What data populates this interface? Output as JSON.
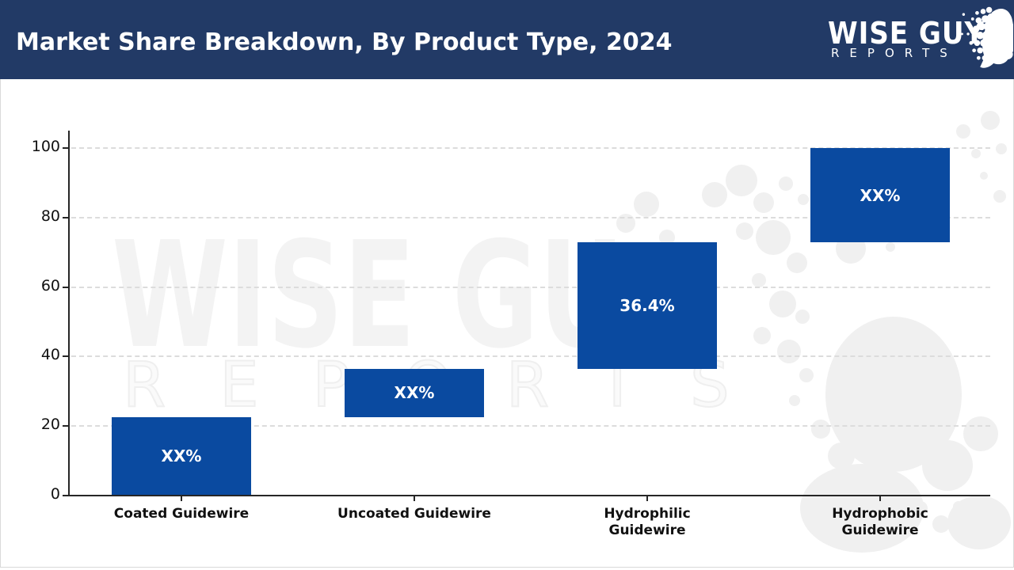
{
  "header": {
    "title": "Market Share Breakdown, By Product Type, 2024"
  },
  "logo": {
    "name_top": "WISE GUY",
    "name_bottom": "REPORTS"
  },
  "watermark": {
    "text_top": "WISE GU",
    "text_bottom": "REPORTS"
  },
  "colors": {
    "header_bg": "#223a66",
    "bar": "#0a4aa0",
    "grid": "#dcdcdc",
    "axis": "#262626",
    "watermark": "#f0f0f0"
  },
  "chart_data": {
    "type": "bar",
    "subtype": "waterfall",
    "title": "Market Share Breakdown, By Product Type, 2024",
    "categories": [
      "Coated Guidewire",
      "Uncoated Guidewire",
      "Hydrophilic Guidewire",
      "Hydrophobic Guidewire"
    ],
    "category_label_lines": [
      [
        "Coated Guidewire"
      ],
      [
        "Uncoated Guidewire"
      ],
      [
        "Hydrophilic",
        "Guidewire"
      ],
      [
        "Hydrophobic",
        "Guidewire"
      ]
    ],
    "segments": [
      {
        "category": "Coated Guidewire",
        "start": 0,
        "end": 22.6,
        "label": "XX%"
      },
      {
        "category": "Uncoated Guidewire",
        "start": 22.6,
        "end": 36.4,
        "label": "XX%"
      },
      {
        "category": "Hydrophilic Guidewire",
        "start": 36.4,
        "end": 72.8,
        "label": "36.4%"
      },
      {
        "category": "Hydrophobic Guidewire",
        "start": 72.8,
        "end": 100,
        "label": "XX%"
      }
    ],
    "ylim": [
      0,
      100
    ],
    "yticks": [
      0,
      20,
      40,
      60,
      80,
      100
    ],
    "grid": "horizontal-dashed",
    "legend": null,
    "bar_color": "#0a4aa0"
  }
}
